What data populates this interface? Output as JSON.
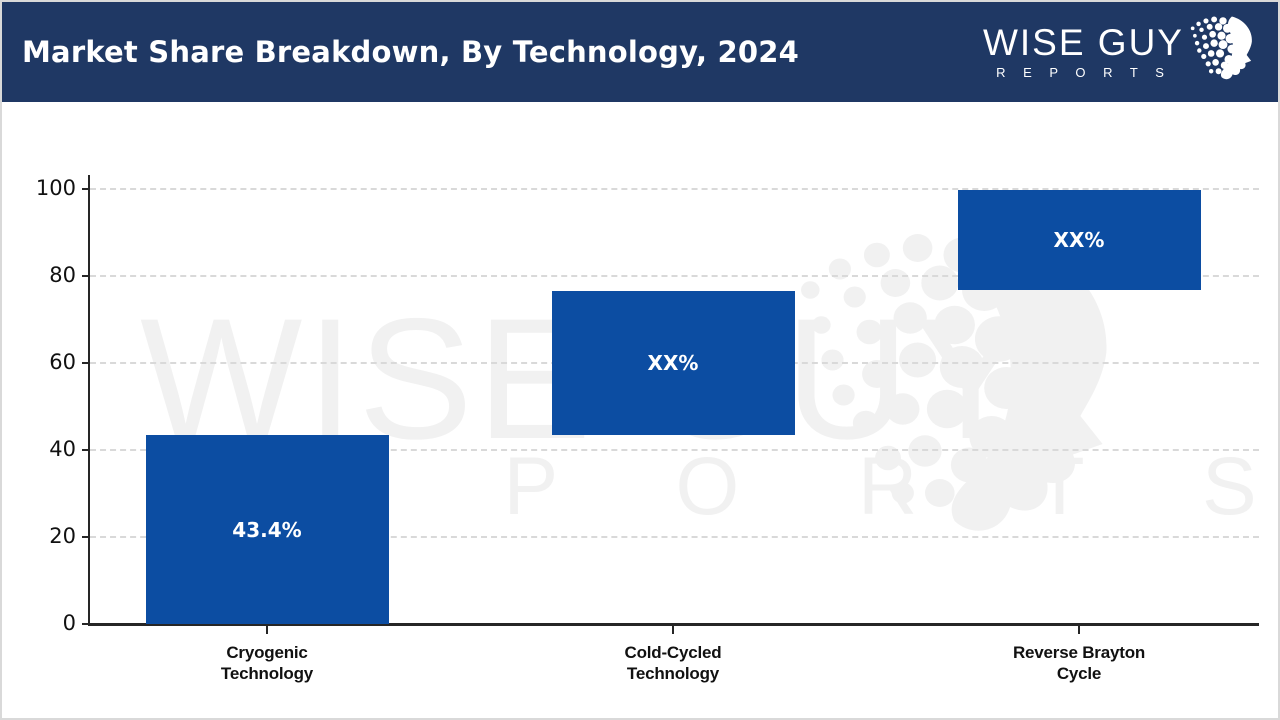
{
  "header": {
    "title": "Market Share Breakdown, By Technology, 2024",
    "logo": {
      "name": "WISE GUY",
      "tagline": "R E P O R T S"
    }
  },
  "watermark": {
    "name": "WISE GUY",
    "tagline": "R E P O R T S"
  },
  "chart_data": {
    "type": "bar",
    "variant": "floating-segment-waterfall",
    "title": "Market Share Breakdown, By Technology, 2024",
    "categories": [
      "Cryogenic Technology",
      "Cold-Cycled Technology",
      "Reverse Brayton Cycle"
    ],
    "category_lines": [
      [
        "Cryogenic",
        "Technology"
      ],
      [
        "Cold-Cycled",
        "Technology"
      ],
      [
        "Reverse Brayton",
        "Cycle"
      ]
    ],
    "segments": [
      {
        "category": "Cryogenic Technology",
        "start": 0,
        "end": 43.4,
        "label": "43.4%"
      },
      {
        "category": "Cold-Cycled Technology",
        "start": 43.4,
        "end": 76.6,
        "label": "XX%"
      },
      {
        "category": "Reverse Brayton Cycle",
        "start": 76.8,
        "end": 99.6,
        "label": "XX%"
      }
    ],
    "bar_color": "#0C4DA2",
    "label_color": "#FFFFFF",
    "yticks": [
      0,
      20,
      40,
      60,
      80,
      100
    ],
    "ylim": [
      0,
      103
    ],
    "xlabel": "",
    "ylabel": "",
    "grid": "horizontal-dashed",
    "legend": "none"
  }
}
